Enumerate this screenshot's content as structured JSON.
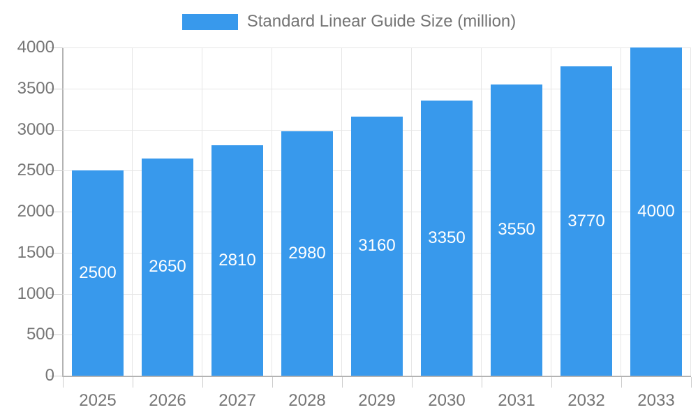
{
  "chart_data": {
    "type": "bar",
    "legend_label": "Standard Linear Guide Size (million)",
    "categories": [
      "2025",
      "2026",
      "2027",
      "2028",
      "2029",
      "2030",
      "2031",
      "2032",
      "2033"
    ],
    "values": [
      2500,
      2650,
      2810,
      2980,
      3160,
      3350,
      3550,
      3770,
      4000
    ],
    "ylim": [
      0,
      4000
    ],
    "yticks": [
      0,
      500,
      1000,
      1500,
      2000,
      2500,
      3000,
      3500,
      4000
    ],
    "grid": true,
    "legend_position": "top-center",
    "colors": {
      "bar": "#3899EC",
      "bar_label": "#ffffff",
      "axis_text": "#757575",
      "gridline": "#e6e6e6",
      "tick": "#cccccc",
      "axis_line": "#b3b3b3",
      "background": "#ffffff"
    }
  }
}
